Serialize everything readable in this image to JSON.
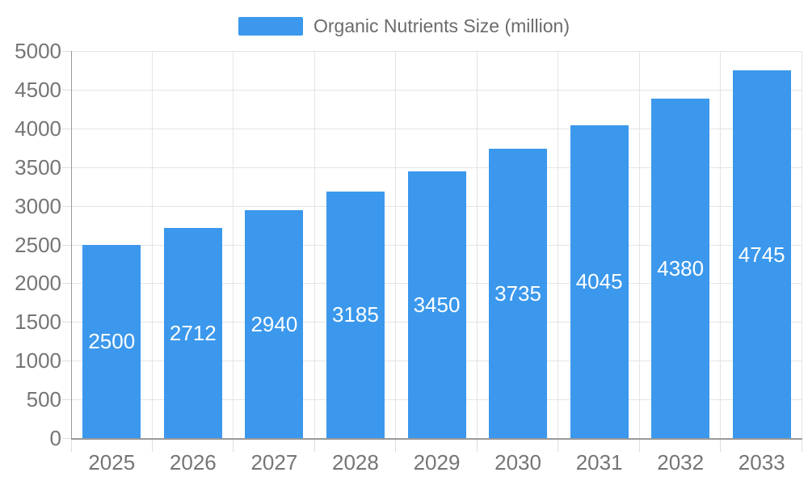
{
  "chart_data": {
    "type": "bar",
    "title": "",
    "legend": "Organic Nutrients Size (million)",
    "legend_position": "top-center",
    "categories": [
      "2025",
      "2026",
      "2027",
      "2028",
      "2029",
      "2030",
      "2031",
      "2032",
      "2033"
    ],
    "values": [
      2500,
      2712,
      2940,
      3185,
      3450,
      3735,
      4045,
      4380,
      4745
    ],
    "value_labels": [
      "2500",
      "2712",
      "2940",
      "3185",
      "3450",
      "3735",
      "4045",
      "4380",
      "4745"
    ],
    "ylim": [
      0,
      5000
    ],
    "ytick_step": 500,
    "yticks": [
      0,
      500,
      1000,
      1500,
      2000,
      2500,
      3000,
      3500,
      4000,
      4500,
      5000
    ],
    "grid": true,
    "colors": {
      "bar": "#3B98EC",
      "bar_value_label": "#FFFFFF",
      "gridline": "#E4E4E4",
      "axis_line": "#999999",
      "tick": "#DDDDDD",
      "axis_label_text": "#757575",
      "legend_text": "#6B6B6B",
      "background": "#FFFFFF"
    }
  }
}
